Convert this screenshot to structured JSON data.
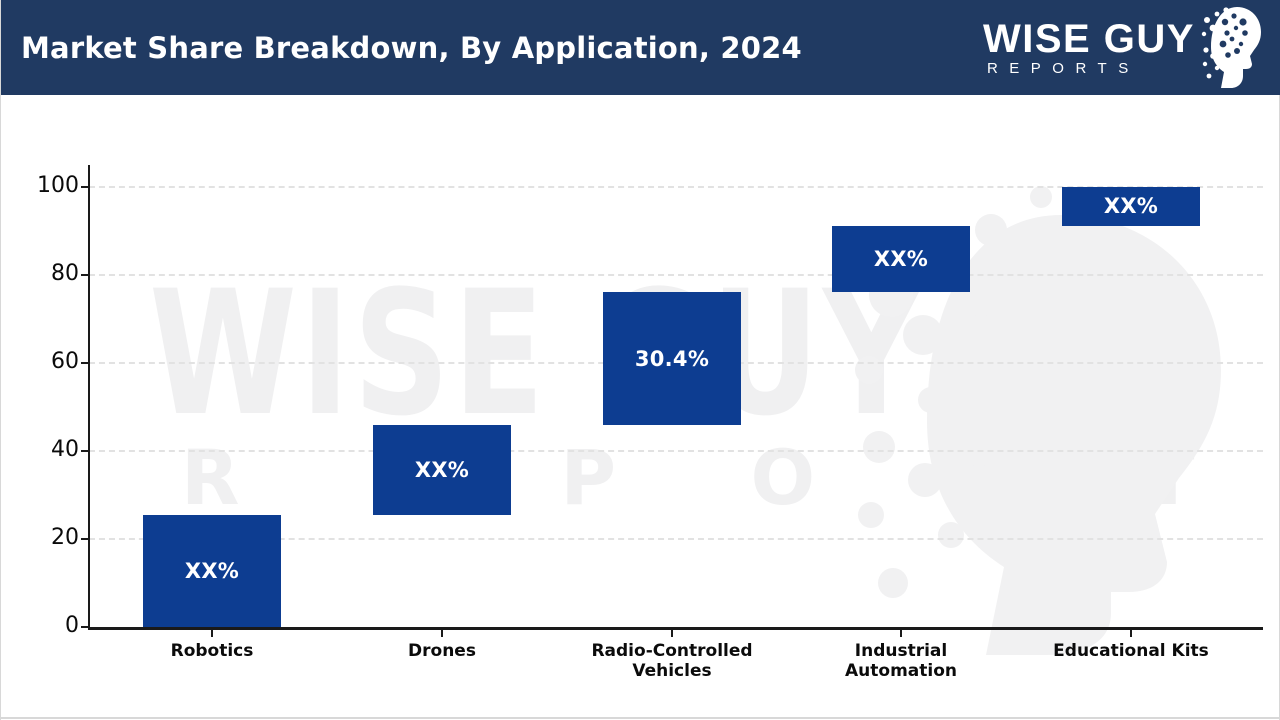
{
  "header": {
    "title": "Market Share Breakdown, By Application, 2024",
    "background": "#203a62",
    "logo": {
      "line1": "WISE GUY",
      "line2": "REPORTS"
    }
  },
  "watermark": {
    "line1": "WISE GUY",
    "line2": "R E P O R T S",
    "color": "#f0f0f1",
    "face_icon": "dotted-head-profile"
  },
  "chart_data": {
    "type": "bar",
    "variant": "waterfall-floating-bars",
    "title": "Market Share Breakdown, By Application, 2024",
    "categories": [
      "Robotics",
      "Drones",
      "Radio-Controlled Vehicles",
      "Industrial Automation",
      "Educational Kits"
    ],
    "tick_label_lines": [
      [
        "Robotics"
      ],
      [
        "Drones"
      ],
      [
        "Radio-Controlled",
        "Vehicles"
      ],
      [
        "Industrial",
        "Automation"
      ],
      [
        "Educational Kits"
      ]
    ],
    "segments": [
      {
        "category": "Robotics",
        "start": 0,
        "end": 25.5,
        "label": "XX%"
      },
      {
        "category": "Drones",
        "start": 25.5,
        "end": 45.8,
        "label": "XX%"
      },
      {
        "category": "Radio-Controlled Vehicles",
        "start": 45.8,
        "end": 76.2,
        "label": "30.4%"
      },
      {
        "category": "Industrial Automation",
        "start": 76.2,
        "end": 91.2,
        "label": "XX%"
      },
      {
        "category": "Educational Kits",
        "start": 91.2,
        "end": 100,
        "label": "XX%"
      }
    ],
    "ylim": [
      0,
      100
    ],
    "yticks": [
      0,
      20,
      40,
      60,
      80,
      100
    ],
    "grid": "dashed-horizontal",
    "legend": "none",
    "bar_color": "#0d3d91",
    "bar_label_color": "#ffffff",
    "axis_color": "#1a1a1a",
    "xlabel": "",
    "ylabel": ""
  }
}
